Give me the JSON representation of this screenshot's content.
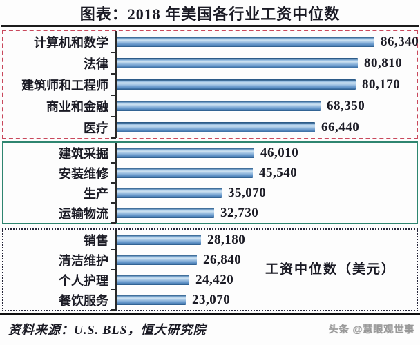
{
  "header": {
    "title": "图表：2018 年美国各行业工资中位数"
  },
  "chart_data": {
    "type": "bar",
    "orientation": "horizontal",
    "title": "图表：2018 年美国各行业工资中位数",
    "value_axis_title": "工资中位数（美元）",
    "unit": "美元",
    "max_value": 86340,
    "axis_range": [
      0,
      86340
    ],
    "grid": false,
    "legend": "none",
    "bar_color": "#5c8fc4",
    "groups": [
      {
        "border": "red-dashed",
        "border_color": "#c9485c",
        "items": [
          {
            "label": "计算机和数学",
            "value": 86340,
            "value_label": "86,340"
          },
          {
            "label": "法律",
            "value": 80810,
            "value_label": "80,810"
          },
          {
            "label": "建筑师和工程师",
            "value": 80170,
            "value_label": "80,170"
          },
          {
            "label": "商业和金融",
            "value": 68350,
            "value_label": "68,350"
          },
          {
            "label": "医疗",
            "value": 66440,
            "value_label": "66,440"
          }
        ]
      },
      {
        "border": "green-solid",
        "border_color": "#2f8570",
        "items": [
          {
            "label": "建筑采掘",
            "value": 46010,
            "value_label": "46,010"
          },
          {
            "label": "安装维修",
            "value": 45540,
            "value_label": "45,540"
          },
          {
            "label": "生产",
            "value": 35070,
            "value_label": "35,070"
          },
          {
            "label": "运输物流",
            "value": 32730,
            "value_label": "32,730"
          }
        ]
      },
      {
        "border": "dark-dotted",
        "border_color": "#26263a",
        "annotation": "工资中位数（美元）",
        "items": [
          {
            "label": "销售",
            "value": 28180,
            "value_label": "28,180"
          },
          {
            "label": "清洁维护",
            "value": 26840,
            "value_label": "26,840"
          },
          {
            "label": "个人护理",
            "value": 24420,
            "value_label": "24,420"
          },
          {
            "label": "餐饮服务",
            "value": 23070,
            "value_label": "23,070"
          }
        ]
      }
    ]
  },
  "footer": {
    "source": "资料来源：U.S.  BLS，恒大研究院",
    "watermark": "头条 @慧眼观世事"
  },
  "colors": {
    "background": "#fdfdfd",
    "text": "#1a1a24",
    "axis": "#2a2a2a",
    "title_rule": "#1c1c1c",
    "bottom_rule": "#101010",
    "group1_border": "#c9485c",
    "group2_border": "#2f8570",
    "group3_border": "#26263a",
    "watermark_gray": "#8f8f8f"
  }
}
